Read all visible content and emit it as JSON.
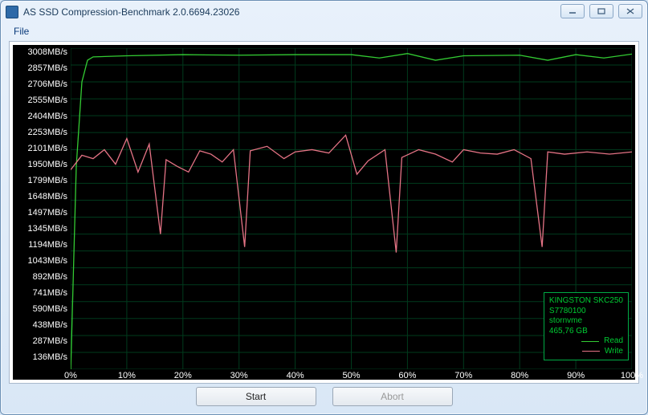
{
  "window": {
    "title": "AS SSD Compression-Benchmark 2.0.6694.23026"
  },
  "menu": {
    "file": "File"
  },
  "buttons": {
    "start": "Start",
    "abort": "Abort"
  },
  "legend": {
    "line1": "KINGSTON SKC250",
    "line2": "S7780100",
    "line3": "stornvme",
    "line4": "465,76 GB",
    "read_label": "Read",
    "write_label": "Write"
  },
  "chart": {
    "type": "line",
    "background_color": "#000000",
    "grid_color": "#003b1d",
    "axis_text_color": "#ffffff",
    "label_fontsize": 11,
    "y": {
      "min": 136,
      "max": 3008,
      "unit": "MB/s",
      "ticks": [
        3008,
        2857,
        2706,
        2555,
        2404,
        2253,
        2101,
        1950,
        1799,
        1648,
        1497,
        1345,
        1194,
        1043,
        892,
        741,
        590,
        438,
        287,
        136
      ]
    },
    "x": {
      "min": 0,
      "max": 100,
      "unit": "%",
      "ticks": [
        0,
        10,
        20,
        30,
        40,
        50,
        60,
        70,
        80,
        90,
        100
      ]
    },
    "series": {
      "read": {
        "color": "#33cc33",
        "points": [
          [
            0,
            100
          ],
          [
            1,
            1950
          ],
          [
            2,
            2706
          ],
          [
            3,
            2900
          ],
          [
            4,
            2930
          ],
          [
            10,
            2940
          ],
          [
            20,
            2950
          ],
          [
            30,
            2945
          ],
          [
            40,
            2950
          ],
          [
            50,
            2950
          ],
          [
            55,
            2920
          ],
          [
            60,
            2960
          ],
          [
            65,
            2900
          ],
          [
            70,
            2940
          ],
          [
            80,
            2945
          ],
          [
            85,
            2900
          ],
          [
            90,
            2950
          ],
          [
            95,
            2920
          ],
          [
            100,
            2955
          ]
        ]
      },
      "write": {
        "color": "#e57385",
        "points": [
          [
            0,
            1920
          ],
          [
            2,
            2050
          ],
          [
            4,
            2020
          ],
          [
            6,
            2100
          ],
          [
            8,
            1970
          ],
          [
            10,
            2200
          ],
          [
            12,
            1900
          ],
          [
            14,
            2150
          ],
          [
            16,
            1345
          ],
          [
            17,
            2010
          ],
          [
            19,
            1950
          ],
          [
            21,
            1900
          ],
          [
            23,
            2090
          ],
          [
            25,
            2060
          ],
          [
            27,
            1990
          ],
          [
            29,
            2100
          ],
          [
            31,
            1230
          ],
          [
            32,
            2090
          ],
          [
            35,
            2130
          ],
          [
            38,
            2020
          ],
          [
            40,
            2080
          ],
          [
            43,
            2100
          ],
          [
            46,
            2070
          ],
          [
            49,
            2230
          ],
          [
            51,
            1880
          ],
          [
            53,
            2000
          ],
          [
            56,
            2100
          ],
          [
            58,
            1180
          ],
          [
            59,
            2030
          ],
          [
            62,
            2100
          ],
          [
            65,
            2060
          ],
          [
            68,
            1990
          ],
          [
            70,
            2100
          ],
          [
            73,
            2070
          ],
          [
            76,
            2060
          ],
          [
            79,
            2100
          ],
          [
            82,
            2020
          ],
          [
            84,
            1230
          ],
          [
            85,
            2080
          ],
          [
            88,
            2060
          ],
          [
            92,
            2080
          ],
          [
            96,
            2060
          ],
          [
            100,
            2080
          ]
        ]
      }
    }
  }
}
